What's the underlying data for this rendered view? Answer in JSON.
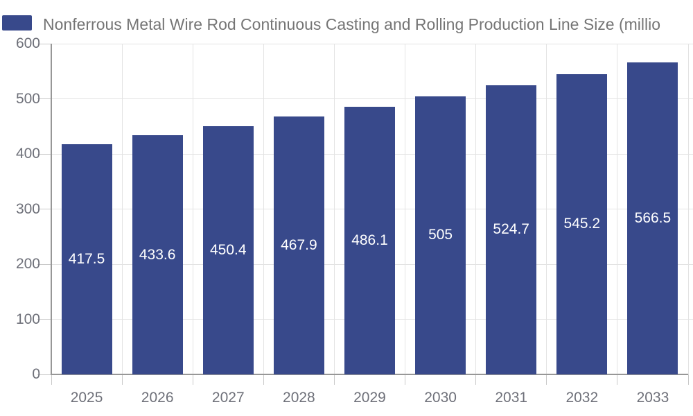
{
  "legend": {
    "series_label": "Nonferrous Metal Wire Rod Continuous Casting and Rolling Production Line Size (millio"
  },
  "chart_data": {
    "type": "bar",
    "title": "Nonferrous Metal Wire Rod Continuous Casting and Rolling Production Line Size (millio",
    "categories": [
      "2025",
      "2026",
      "2027",
      "2028",
      "2029",
      "2030",
      "2031",
      "2032",
      "2033"
    ],
    "values": [
      417.5,
      433.6,
      450.4,
      467.9,
      486.1,
      505,
      524.7,
      545.2,
      566.5
    ],
    "value_labels": [
      "417.5",
      "433.6",
      "450.4",
      "467.9",
      "486.1",
      "505",
      "524.7",
      "545.2",
      "566.5"
    ],
    "xlabel": "",
    "ylabel": "",
    "ylim": [
      0,
      600
    ],
    "yticks": [
      0,
      100,
      200,
      300,
      400,
      500,
      600
    ],
    "grid": true,
    "legend_position": "top-left",
    "value_label_position": "inside-center",
    "colors": {
      "bar": "#38498B",
      "grid": "#E3E3E3",
      "axis": "#979797",
      "tick": "#C9C9C9",
      "tick_label": "#6E7079",
      "title_text": "#757575",
      "value_label": "#FFFFFF",
      "background": "#FFFFFF"
    }
  }
}
